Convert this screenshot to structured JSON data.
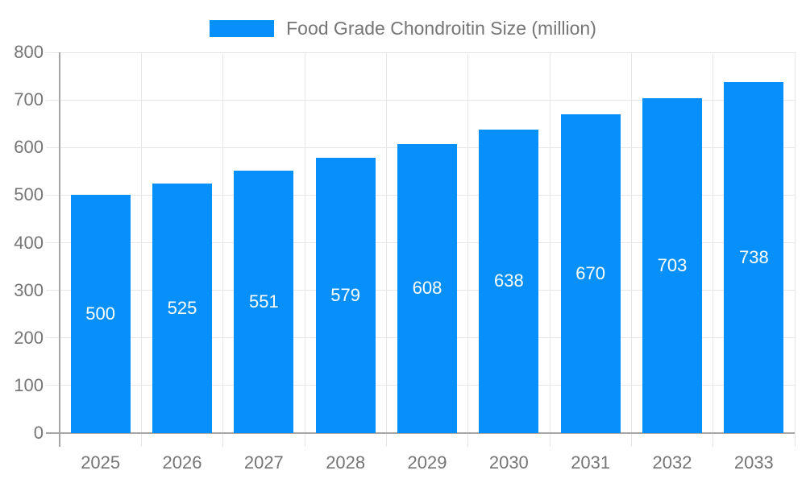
{
  "legend": {
    "label": "Food Grade Chondroitin Size (million)"
  },
  "colors": {
    "bar": "#0890fa",
    "grid": "#e6e6e6",
    "axis": "#a6a6a6",
    "tick_text": "#757575",
    "value_text": "#ffffff",
    "background": "#ffffff"
  },
  "chart_data": {
    "type": "bar",
    "title": "Food Grade Chondroitin Size (million)",
    "categories": [
      "2025",
      "2026",
      "2027",
      "2028",
      "2029",
      "2030",
      "2031",
      "2032",
      "2033"
    ],
    "series": [
      {
        "name": "Food Grade Chondroitin Size (million)",
        "values": [
          500,
          525,
          551,
          579,
          608,
          638,
          670,
          703,
          738
        ]
      }
    ],
    "xlabel": "",
    "ylabel": "",
    "ylim": [
      0,
      800
    ],
    "ytick_step": 100,
    "yticks": [
      0,
      100,
      200,
      300,
      400,
      500,
      600,
      700,
      800
    ],
    "grid": true,
    "legend_position": "top",
    "value_labels": "inside-center"
  }
}
